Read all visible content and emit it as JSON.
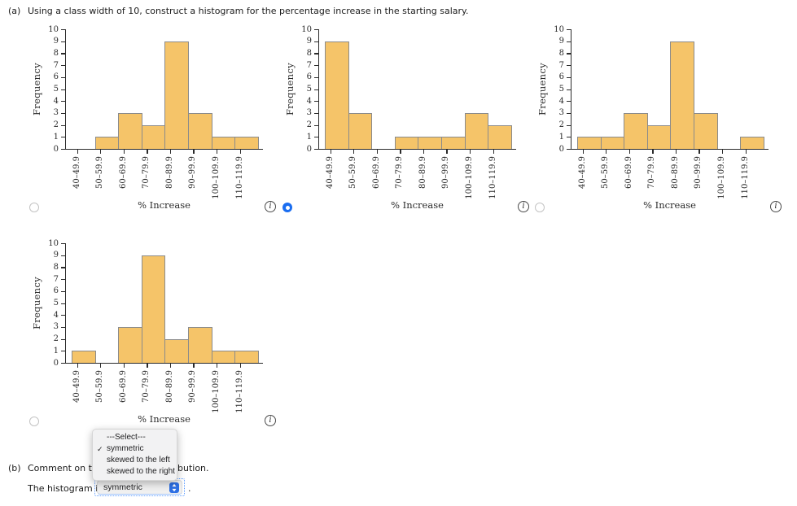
{
  "question": {
    "part_a_label": "(a)",
    "part_a_text": "Using a class width of 10, construct a histogram for the percentage increase in the starting salary.",
    "part_b_label": "(b)",
    "part_b_text_before": "Comment on th",
    "part_b_text_after": "bution.",
    "answer_prefix": "The histogram is",
    "answer_suffix": "."
  },
  "select_control": {
    "value": "symmetric"
  },
  "dropdown_menu": {
    "items": [
      {
        "label": "---Select---",
        "checked": false
      },
      {
        "label": "symmetric",
        "checked": true
      },
      {
        "label": "skewed to the left",
        "checked": false
      },
      {
        "label": "skewed to the right",
        "checked": false
      }
    ]
  },
  "options": [
    {
      "id": "histogram-option-1",
      "selected": false
    },
    {
      "id": "histogram-option-2",
      "selected": true
    },
    {
      "id": "histogram-option-3",
      "selected": false
    },
    {
      "id": "histogram-option-4",
      "selected": false
    }
  ],
  "icons": {
    "info": "i",
    "check": "✓"
  },
  "colors": {
    "bar_fill": "#F5C469",
    "bar_border": "#8B8B8B",
    "radio_selected": "#1A6DF0",
    "stepper_blue": "#2D6FE4",
    "focus_ring": "#5B9BFF",
    "axis": "#2B2B2B"
  },
  "chart_data": [
    {
      "type": "bar",
      "subtype": "histogram",
      "categories": [
        "40–49.9",
        "50–59.9",
        "60–69.9",
        "70–79.9",
        "80–89.9",
        "90–99.9",
        "100–109.9",
        "110–119.9"
      ],
      "values": [
        0,
        1,
        3,
        2,
        9,
        3,
        1,
        1
      ],
      "title": "",
      "xlabel": "% Increase",
      "ylabel": "Frequency",
      "ylim": [
        0,
        10
      ],
      "yticks": [
        0,
        1,
        2,
        3,
        4,
        5,
        6,
        7,
        8,
        9,
        10
      ],
      "grid": false,
      "legend": false
    },
    {
      "type": "bar",
      "subtype": "histogram",
      "categories": [
        "40–49.9",
        "50–59.9",
        "60–69.9",
        "70–79.9",
        "80–89.9",
        "90–99.9",
        "100–109.9",
        "110–119.9"
      ],
      "values": [
        9,
        3,
        0,
        1,
        1,
        1,
        3,
        2
      ],
      "title": "",
      "xlabel": "% Increase",
      "ylabel": "Frequency",
      "ylim": [
        0,
        10
      ],
      "yticks": [
        0,
        1,
        2,
        3,
        4,
        5,
        6,
        7,
        8,
        9,
        10
      ],
      "grid": false,
      "legend": false
    },
    {
      "type": "bar",
      "subtype": "histogram",
      "categories": [
        "40–49.9",
        "50–59.9",
        "60–69.9",
        "70–79.9",
        "80–89.9",
        "90–99.9",
        "100–109.9",
        "110–119.9"
      ],
      "values": [
        1,
        1,
        3,
        2,
        9,
        3,
        0,
        1
      ],
      "title": "",
      "xlabel": "% Increase",
      "ylabel": "Frequency",
      "ylim": [
        0,
        10
      ],
      "yticks": [
        0,
        1,
        2,
        3,
        4,
        5,
        6,
        7,
        8,
        9,
        10
      ],
      "grid": false,
      "legend": false
    },
    {
      "type": "bar",
      "subtype": "histogram",
      "categories": [
        "40–49.9",
        "50–59.9",
        "60–69.9",
        "70–79.9",
        "80–89.9",
        "90–99.9",
        "100–109.9",
        "110–119.9"
      ],
      "values": [
        1,
        0,
        3,
        9,
        2,
        3,
        1,
        1
      ],
      "title": "",
      "xlabel": "% Increase",
      "ylabel": "Frequency",
      "ylim": [
        0,
        10
      ],
      "yticks": [
        0,
        1,
        2,
        3,
        4,
        5,
        6,
        7,
        8,
        9,
        10
      ],
      "grid": false,
      "legend": false
    }
  ]
}
